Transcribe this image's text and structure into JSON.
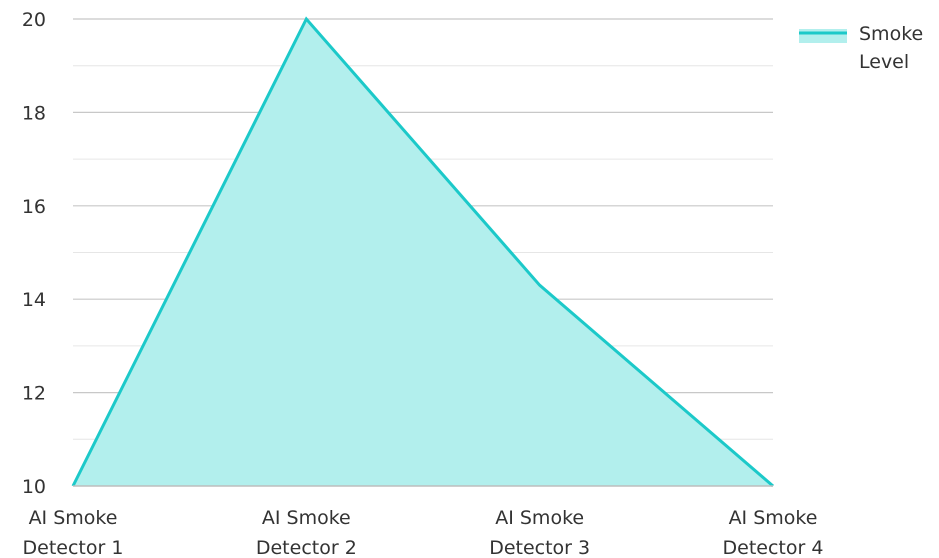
{
  "chart_data": {
    "type": "area",
    "categories": [
      [
        "AI Smoke",
        "Detector 1"
      ],
      [
        "AI Smoke",
        "Detector 2"
      ],
      [
        "AI Smoke",
        "Detector 3"
      ],
      [
        "AI Smoke",
        "Detector 4"
      ]
    ],
    "series": [
      {
        "name": "Smoke Level",
        "values": [
          10,
          20,
          14.3,
          10
        ]
      }
    ],
    "ylim": [
      10,
      20
    ],
    "yticks": [
      10,
      12,
      14,
      16,
      18,
      20
    ],
    "minor_gridlines": true,
    "grid": true,
    "legend_position": "top-right",
    "legend_label_lines": [
      "Smoke",
      "Level"
    ],
    "title": "",
    "xlabel": "",
    "ylabel": "",
    "colors": {
      "line": "#1cc9c9",
      "fill": "#b2efed",
      "grid": "#c8c8c8",
      "axis": "#bdbdbd",
      "text": "#333333"
    }
  }
}
